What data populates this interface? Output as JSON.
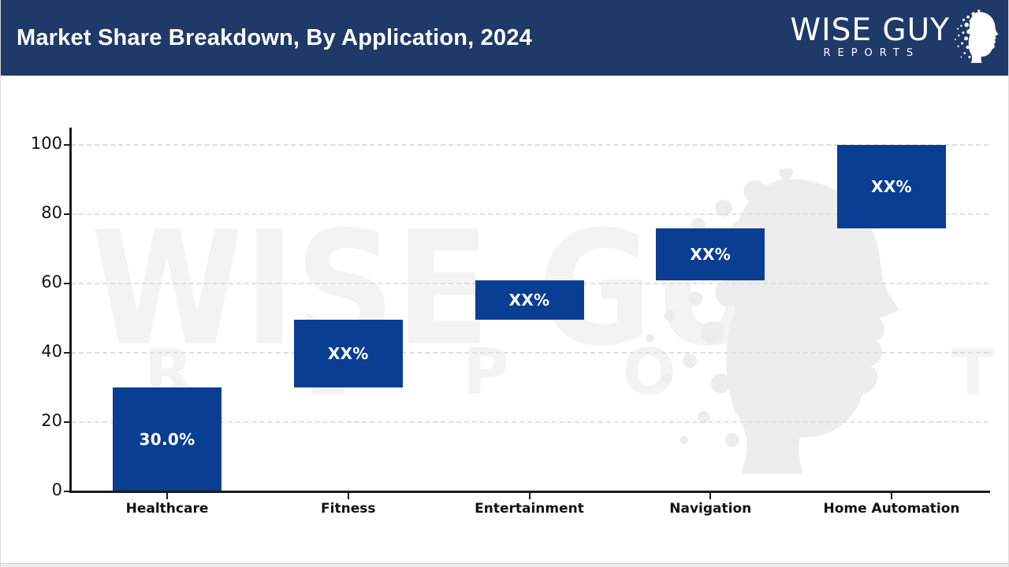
{
  "header": {
    "title": "Market Share Breakdown, By Application, 2024",
    "bg_color": "#1f3a68",
    "logo": {
      "line1": "WISE GUY",
      "line2": "REPORTS",
      "head_icon": "dotted-face-profile"
    }
  },
  "watermark": {
    "line1": "WISE GUY",
    "line2": "R E P O R T S",
    "head_icon": "dotted-face-profile"
  },
  "chart_data": {
    "type": "bar",
    "subtype": "waterfall",
    "title": "Market Share Breakdown, By Application, 2024",
    "categories": [
      "Healthcare",
      "Fitness",
      "Entertainment",
      "Navigation",
      "Home Automation"
    ],
    "segments": [
      {
        "category": "Healthcare",
        "start": 0,
        "end": 30,
        "label": "30.0%"
      },
      {
        "category": "Fitness",
        "start": 30,
        "end": 49.5,
        "label": "XX%"
      },
      {
        "category": "Entertainment",
        "start": 49.5,
        "end": 61,
        "label": "XX%"
      },
      {
        "category": "Navigation",
        "start": 61,
        "end": 76,
        "label": "XX%"
      },
      {
        "category": "Home Automation",
        "start": 76,
        "end": 100,
        "label": "XX%"
      }
    ],
    "yticks": [
      0,
      20,
      40,
      60,
      80,
      100
    ],
    "ylim": [
      0,
      106
    ],
    "xlabel": "",
    "ylabel": "",
    "grid": "horizontal-dashed",
    "legend": "none",
    "bar_color": "#0a3e92",
    "bar_label_color": "#ffffff"
  }
}
